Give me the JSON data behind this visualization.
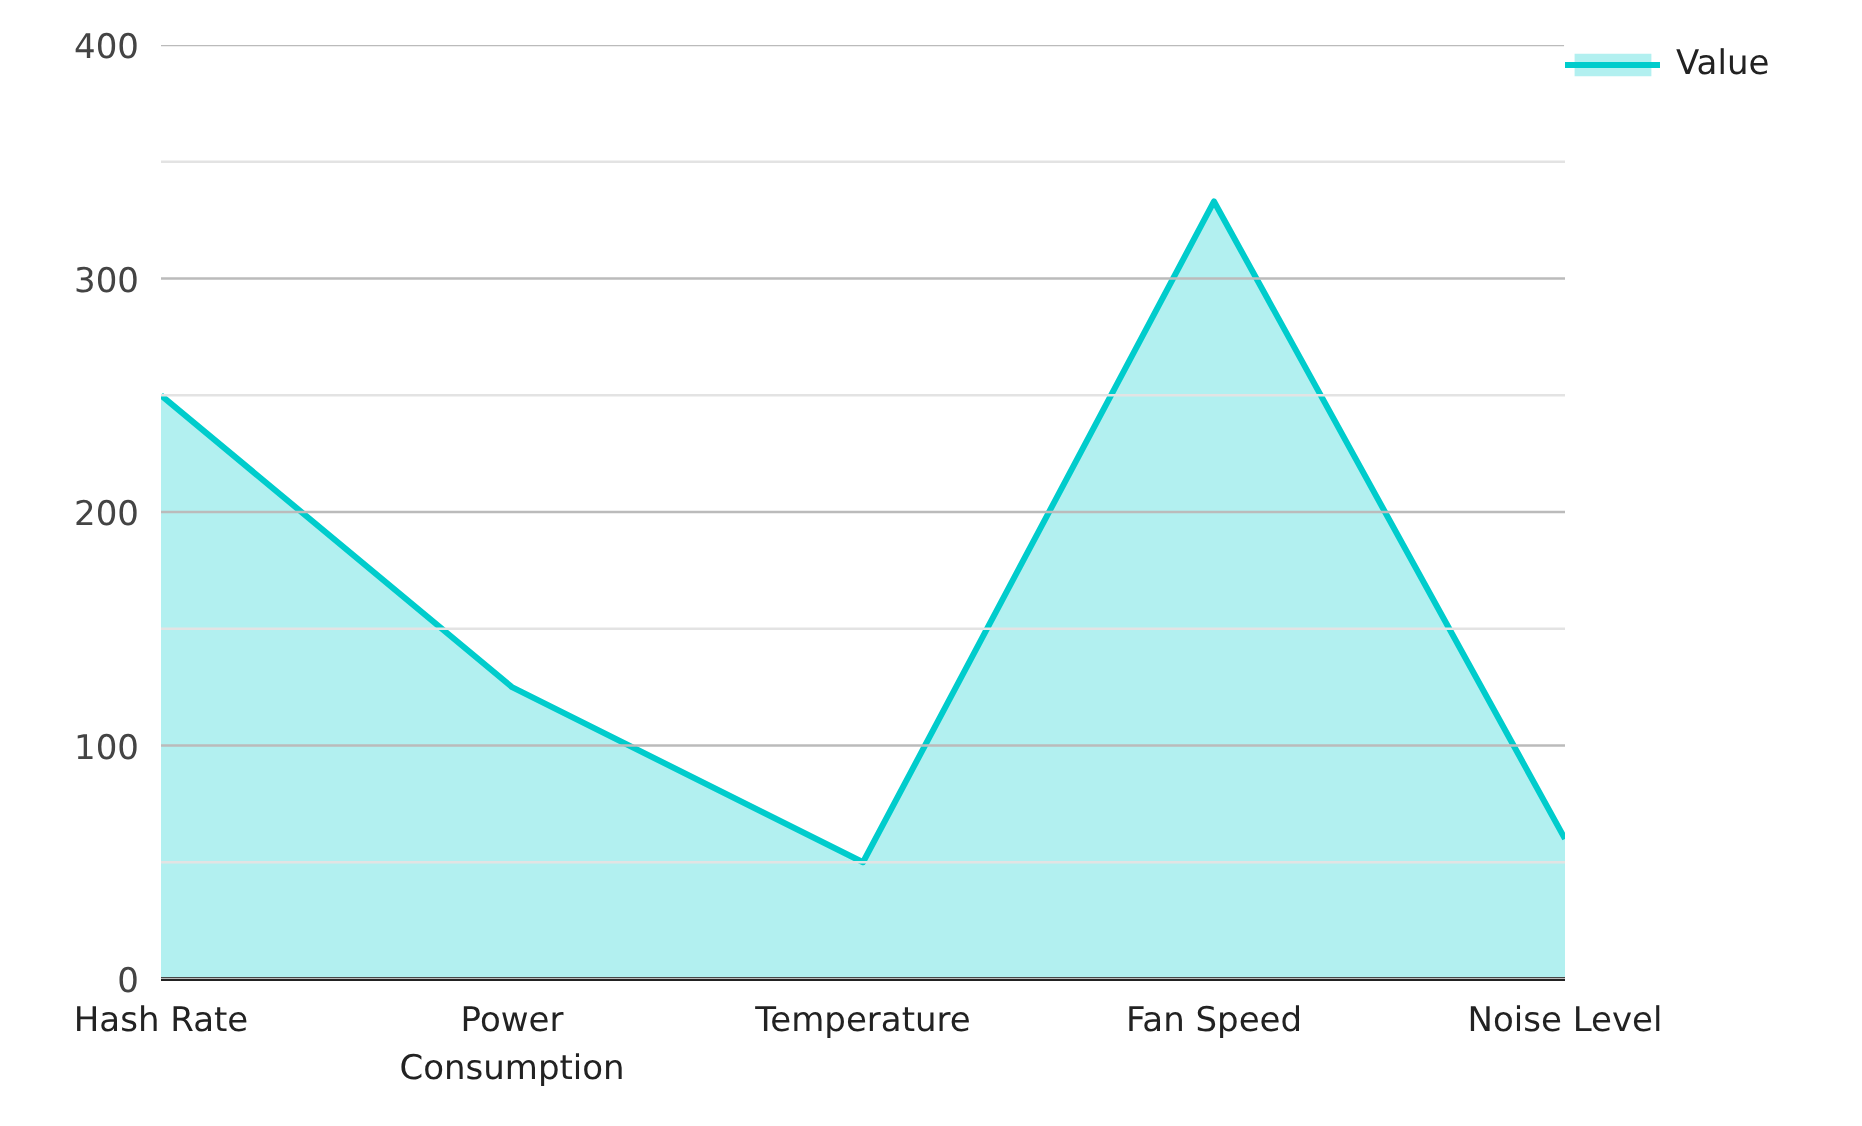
{
  "chart_data": {
    "type": "area",
    "categories": [
      "Hash Rate",
      "Power Consumption",
      "Temperature",
      "Fan Speed",
      "Noise Level"
    ],
    "series": [
      {
        "name": "Value",
        "color": "#00cccc",
        "values": [
          250,
          125,
          50,
          333,
          60
        ]
      }
    ],
    "ylim": [
      0,
      400
    ],
    "yticks": [
      0,
      {
        "value": 50,
        "label": null
      },
      100,
      {
        "value": 150,
        "label": null
      },
      200,
      {
        "value": 250,
        "label": null
      },
      300,
      {
        "value": 350,
        "label": null
      },
      400
    ],
    "grid": "y",
    "legend": "top right"
  }
}
